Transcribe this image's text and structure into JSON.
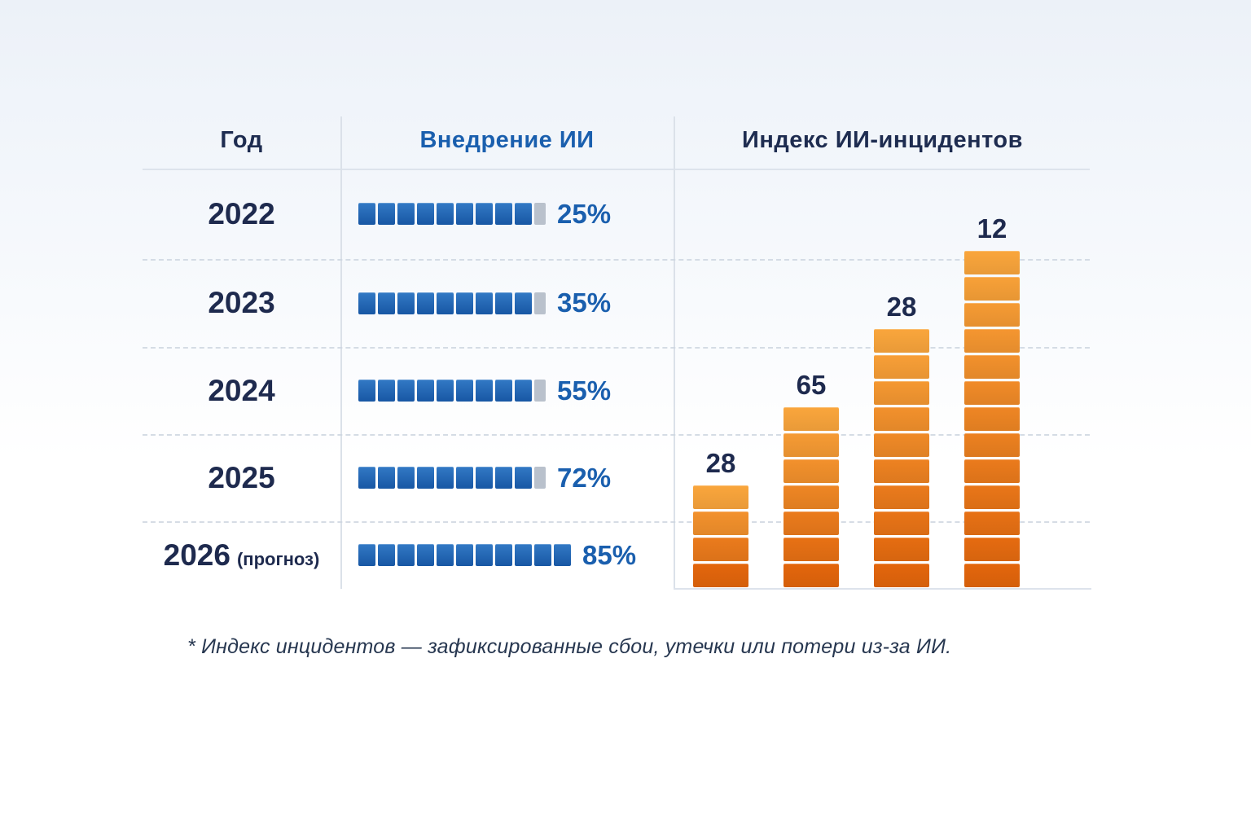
{
  "table": {
    "headers": [
      "Год",
      "Внедрение ИИ",
      "Индекс ИИ-инцидентов"
    ],
    "rows": [
      {
        "year": "2022",
        "suffix": "",
        "percent": "25%",
        "blue_segments": 9,
        "gray_segments": 1
      },
      {
        "year": "2023",
        "suffix": "",
        "percent": "35%",
        "blue_segments": 9,
        "gray_segments": 1
      },
      {
        "year": "2024",
        "suffix": "",
        "percent": "55%",
        "blue_segments": 9,
        "gray_segments": 1
      },
      {
        "year": "2025",
        "suffix": "",
        "percent": "72%",
        "blue_segments": 9,
        "gray_segments": 1
      },
      {
        "year": "2026",
        "suffix": "(прогноз)",
        "percent": "85%",
        "blue_segments": 11,
        "gray_segments": 0
      }
    ]
  },
  "incident_chart": {
    "bars": [
      {
        "label": "28",
        "segments": 4
      },
      {
        "label": "65",
        "segments": 7
      },
      {
        "label": "28",
        "segments": 10
      },
      {
        "label": "12",
        "segments": 13
      }
    ]
  },
  "footnote": "* Индекс инцидентов — зафиксированные сбои, утечки или потери из-за ИИ.",
  "colors": {
    "navy_text": "#1e2a4e",
    "accent_blue": "#1a5fae",
    "blue_segment_top": "#3279c5",
    "blue_segment_bottom": "#1857a4",
    "gray_segment": "#b9c1cc",
    "orange_top": "#faa63c",
    "orange_bottom": "#e4660c",
    "grid_line": "#dde3ec",
    "dashed_line": "#cfd7e1"
  },
  "chart_data": [
    {
      "type": "bar",
      "title": "Внедрение ИИ",
      "orientation": "horizontal",
      "style": "segmented-progress",
      "categories": [
        "2022",
        "2023",
        "2024",
        "2025",
        "2026 (прогноз)"
      ],
      "values": [
        25,
        35,
        55,
        72,
        85
      ],
      "unit": "%",
      "data_labels": [
        "25%",
        "35%",
        "55%",
        "72%",
        "85%"
      ]
    },
    {
      "type": "bar",
      "title": "Индекс ИИ-инцидентов",
      "orientation": "vertical",
      "style": "segmented-stacked",
      "values": [
        28,
        65,
        28,
        12
      ],
      "data_labels": [
        "28",
        "65",
        "28",
        "12"
      ],
      "bar_segment_counts": [
        4,
        7,
        10,
        13
      ],
      "xlabel": "",
      "ylabel": "",
      "grid": "dashed-horizontal",
      "legend": "none",
      "note": "Bar heights increase left to right while labels read 28, 65, 28, 12 as shown in image; no axis tick labels rendered."
    }
  ]
}
